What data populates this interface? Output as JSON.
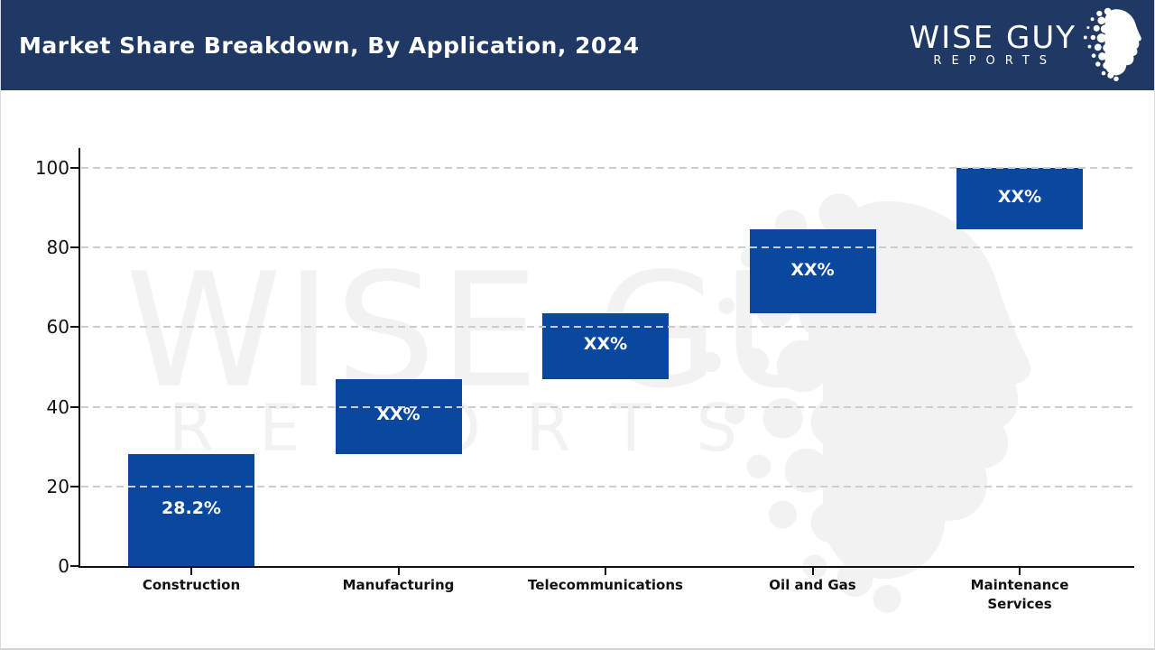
{
  "header": {
    "title": "Market Share Breakdown, By Application, 2024",
    "logo": {
      "name": "WISE GUY",
      "sub": "REPORTS",
      "icon": "wise-guy-face-icon"
    }
  },
  "watermark": {
    "line1": "WISE GUY",
    "line2": "REPORTS",
    "icon": "wise-guy-face-icon"
  },
  "colors": {
    "header_bg": "#203864",
    "bar": "#0a479f",
    "bar_label": "#ffffff",
    "grid": "#cdcdcd",
    "axis": "#111111",
    "watermark": "#f2f2f2"
  },
  "chart_data": {
    "type": "bar",
    "subtype": "waterfall",
    "title": "Market Share Breakdown, By Application, 2024",
    "xlabel": "",
    "ylabel": "",
    "categories": [
      "Construction",
      "Manufacturing",
      "Telecommunications",
      "Oil and Gas",
      "Maintenance Services"
    ],
    "xtick_labels": [
      "Construction",
      "Manufacturing",
      "Telecommunications",
      "Oil and Gas",
      "Maintenance\nServices"
    ],
    "bars": [
      {
        "category": "Construction",
        "start": 0,
        "end": 28.2,
        "label": "28.2%"
      },
      {
        "category": "Manufacturing",
        "start": 28.2,
        "end": 47.0,
        "label": "XX%"
      },
      {
        "category": "Telecommunications",
        "start": 47.0,
        "end": 63.5,
        "label": "XX%"
      },
      {
        "category": "Oil and Gas",
        "start": 63.5,
        "end": 84.5,
        "label": "XX%"
      },
      {
        "category": "Maintenance Services",
        "start": 84.5,
        "end": 100,
        "label": "XX%"
      }
    ],
    "yticks": [
      0,
      20,
      40,
      60,
      80,
      100
    ],
    "ylim": [
      0,
      105
    ],
    "grid": "horizontal-dashed",
    "legend": "none"
  }
}
